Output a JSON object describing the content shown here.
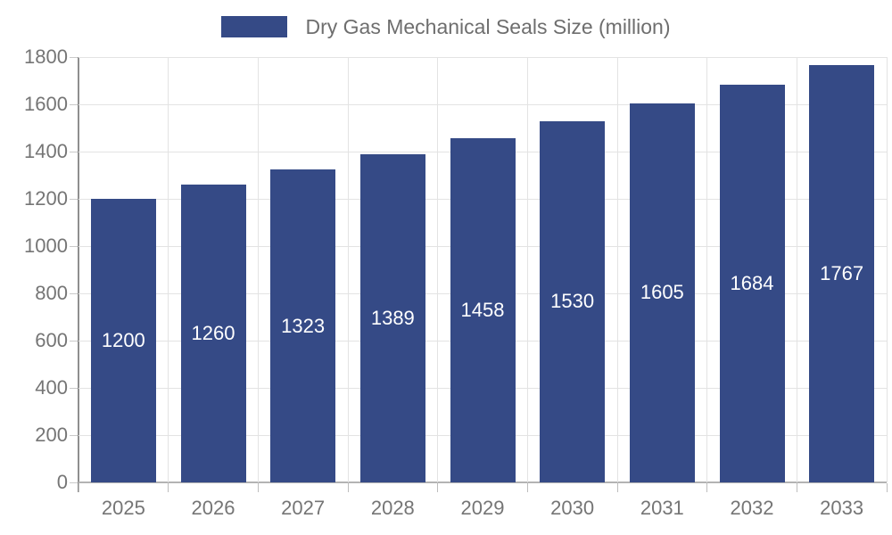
{
  "legend": {
    "label": "Dry Gas Mechanical Seals Size (million)"
  },
  "chart_data": {
    "type": "bar",
    "title": "Dry Gas Mechanical Seals Size (million)",
    "categories": [
      "2025",
      "2026",
      "2027",
      "2028",
      "2029",
      "2030",
      "2031",
      "2032",
      "2033"
    ],
    "values": [
      1200,
      1260,
      1323,
      1389,
      1458,
      1530,
      1605,
      1684,
      1767
    ],
    "xlabel": "",
    "ylabel": "",
    "ylim": [
      0,
      1800
    ],
    "ytick_step": 200,
    "ytick_labels": [
      "0",
      "200",
      "400",
      "600",
      "800",
      "1000",
      "1200",
      "1400",
      "1600",
      "1800"
    ],
    "grid": true,
    "legend_position": "top-center",
    "colors": {
      "bar": "#354a86",
      "value_label": "#ffffff",
      "axis_text": "#757575",
      "legend_text": "#6e6e6e",
      "gridline": "#e3e3e3",
      "axis_line": "#8f8f8f"
    }
  }
}
